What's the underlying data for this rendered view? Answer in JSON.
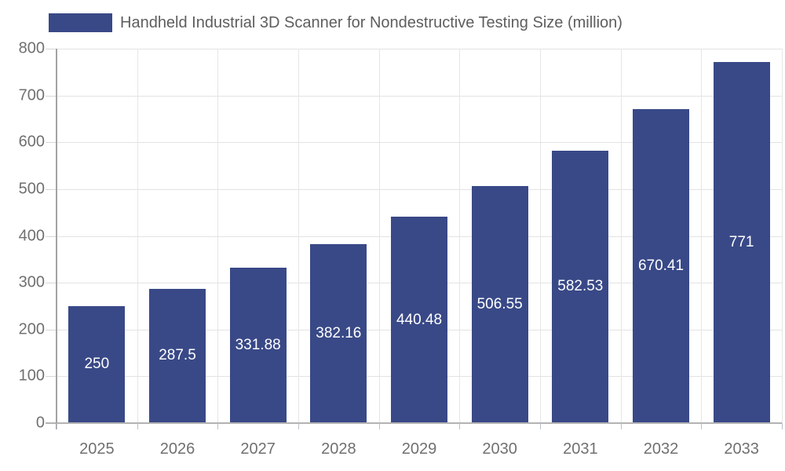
{
  "legend": {
    "label": "Handheld Industrial 3D Scanner for Nondestructive Testing Size (million)"
  },
  "chart_data": {
    "type": "bar",
    "title": "Handheld Industrial 3D Scanner for Nondestructive Testing Size (million)",
    "categories": [
      "2025",
      "2026",
      "2027",
      "2028",
      "2029",
      "2030",
      "2031",
      "2032",
      "2033"
    ],
    "values": [
      250,
      287.5,
      331.88,
      382.16,
      440.48,
      506.55,
      582.53,
      670.41,
      771
    ],
    "value_labels": [
      "250",
      "287.5",
      "331.88",
      "382.16",
      "440.48",
      "506.55",
      "582.53",
      "670.41",
      "771"
    ],
    "xlabel": "",
    "ylabel": "",
    "ylim": [
      0,
      800
    ],
    "yticks": [
      0,
      100,
      200,
      300,
      400,
      500,
      600,
      700,
      800
    ],
    "grid": true,
    "legend_position": "top-left",
    "bar_color": "#394987",
    "value_label_color": "#ffffff",
    "axis_label_color": "#707070"
  }
}
